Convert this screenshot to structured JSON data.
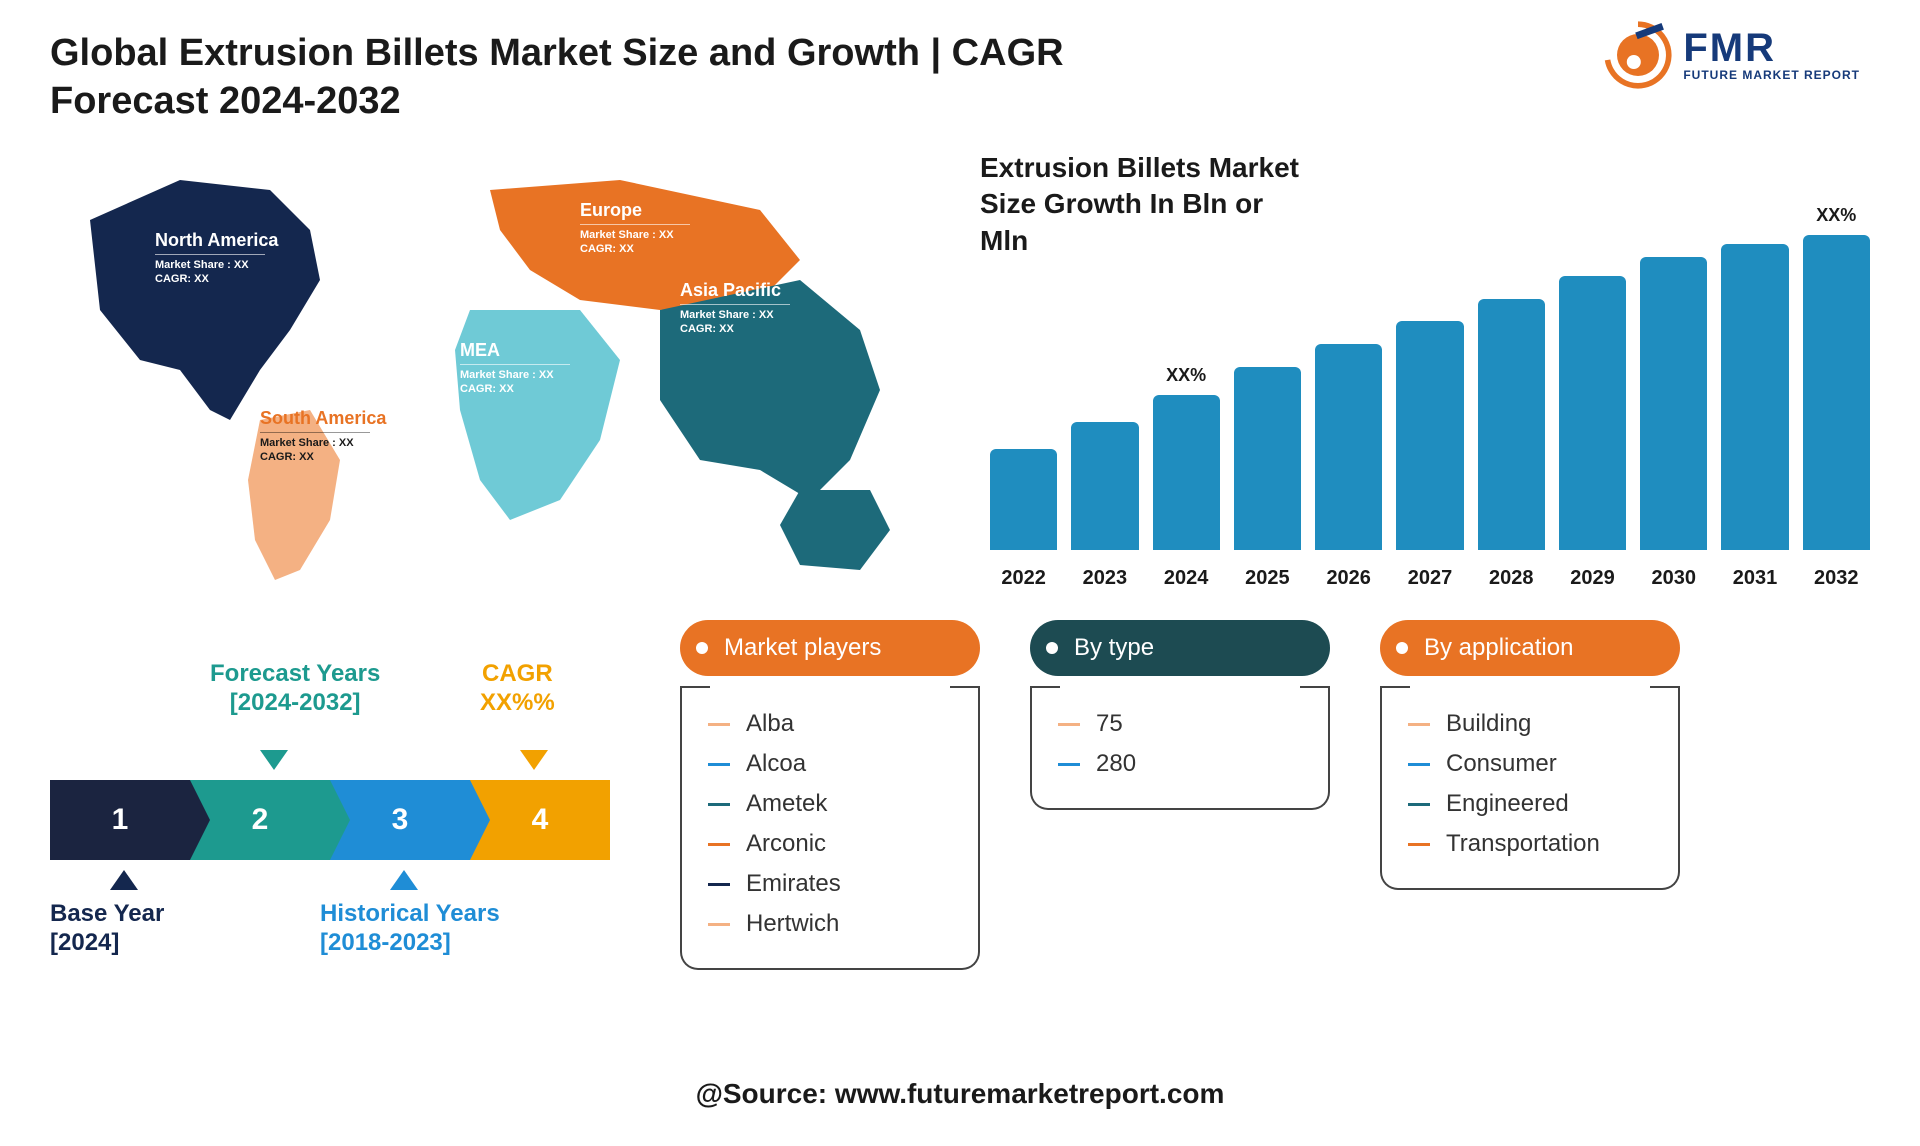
{
  "title": "Global Extrusion Billets  Market Size and Growth | CAGR Forecast 2024-2032",
  "logo": {
    "abbr": "FMR",
    "full": "FUTURE MARKET REPORT",
    "icon_color": "#e87324",
    "text_color": "#163a7a"
  },
  "source": "@Source: www.futuremarketreport.com",
  "map": {
    "regions": {
      "north_america": {
        "name": "North America",
        "share": "Market Share : XX",
        "cagr": "CAGR: XX",
        "fill": "#14274e",
        "text_color": "#ffffff"
      },
      "south_america": {
        "name": "South America",
        "share": "Market Share : XX",
        "cagr": "CAGR: XX",
        "fill": "#f4b183",
        "text_color": "#1a1a1a"
      },
      "europe": {
        "name": "Europe",
        "share": "Market Share : XX",
        "cagr": "CAGR: XX",
        "fill": "#e87324",
        "text_color": "#ffffff"
      },
      "mea": {
        "name": "MEA",
        "share": "Market Share : XX",
        "cagr": "CAGR: XX",
        "fill": "#6fcad6",
        "text_color": "#ffffff"
      },
      "asia_pacific": {
        "name": "Asia Pacific",
        "share": "Market Share : XX",
        "cagr": "CAGR: XX",
        "fill": "#1d6a7a",
        "text_color": "#ffffff"
      }
    }
  },
  "chart": {
    "title": "Extrusion Billets Market Size Growth In Bln or Mln",
    "type": "bar",
    "years": [
      "2022",
      "2023",
      "2024",
      "2025",
      "2026",
      "2027",
      "2028",
      "2029",
      "2030",
      "2031",
      "2032"
    ],
    "values": [
      110,
      140,
      170,
      200,
      225,
      250,
      275,
      300,
      320,
      335,
      345
    ],
    "bar_color": "#1f8dbf",
    "annotations": {
      "2024": "XX%",
      "2032": "XX%"
    },
    "ylim": [
      0,
      350
    ],
    "background_color": "#ffffff",
    "label_fontsize": 20,
    "title_fontsize": 28,
    "bar_radius": 6
  },
  "timeline": {
    "labels": {
      "base_year": {
        "text_line1": "Base Year",
        "text_line2": "[2024]",
        "color": "#14274e"
      },
      "forecast": {
        "text_line1": "Forecast Years",
        "text_line2": "[2024-2032]",
        "color": "#1d9a8f"
      },
      "historical": {
        "text_line1": "Historical Years",
        "text_line2": "[2018-2023]",
        "color": "#1f8dd6"
      },
      "cagr": {
        "text_line1": "CAGR",
        "text_line2": "XX%%",
        "color": "#f2a100"
      }
    },
    "segments": [
      {
        "num": "1",
        "color": "#1b2440"
      },
      {
        "num": "2",
        "color": "#1d9a8f"
      },
      {
        "num": "3",
        "color": "#1f8dd6"
      },
      {
        "num": "4",
        "color": "#f2a100"
      }
    ]
  },
  "pill_columns": {
    "players": {
      "title": "Market players",
      "pill_color": "#e87324",
      "items": [
        "Alba",
        "Alcoa",
        "Ametek",
        "Arconic",
        "Emirates",
        "Hertwich"
      ],
      "tick_colors": [
        "#f4b183",
        "#1f8dd6",
        "#1d6a7a",
        "#e87324",
        "#14274e",
        "#f4b183"
      ]
    },
    "type": {
      "title": "By type",
      "pill_color": "#1d4b52",
      "items": [
        "75",
        "280"
      ],
      "tick_colors": [
        "#f4b183",
        "#1f8dd6"
      ]
    },
    "application": {
      "title": "By application",
      "pill_color": "#e87324",
      "items": [
        "Building",
        "Consumer",
        "Engineered",
        "Transportation"
      ],
      "tick_colors": [
        "#f4b183",
        "#1f8dd6",
        "#1d6a7a",
        "#e87324"
      ]
    }
  }
}
